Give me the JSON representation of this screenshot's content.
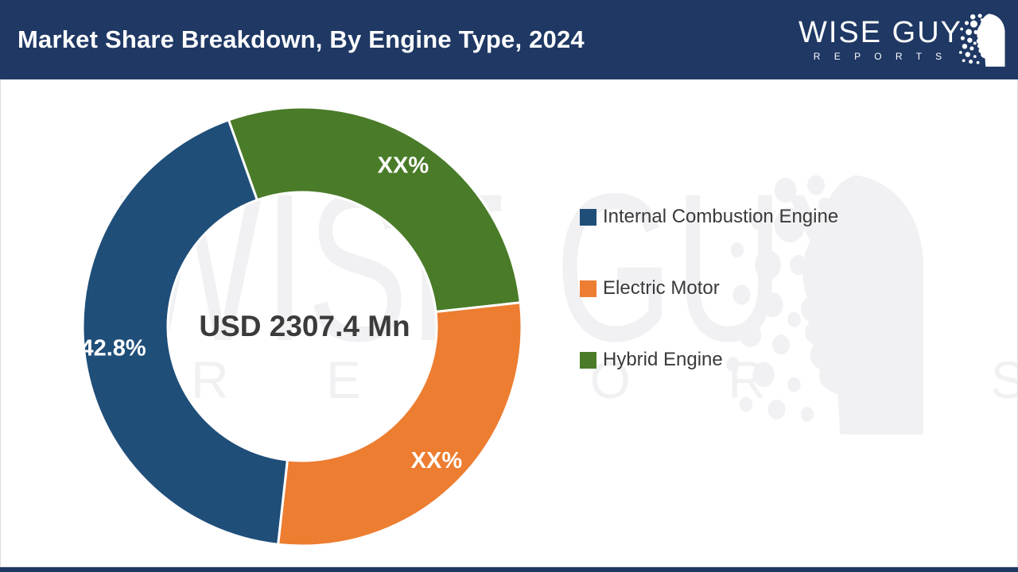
{
  "header": {
    "title": "Market Share Breakdown, By Engine Type, 2024",
    "logo": {
      "name": "WISE GUY",
      "subtitle": "R E P O R T S"
    }
  },
  "watermark": {
    "name": "WISE GUY",
    "subtitle": "R E P O R T S"
  },
  "chart_data": {
    "type": "donut",
    "title": "Market Share Breakdown, By Engine Type, 2024",
    "center_label": "USD 2307.4 Mn",
    "start_angle_deg_clockwise_from_top": -19.6,
    "legend_position": "right",
    "segments": [
      {
        "name": "Hybrid Engine",
        "label": "XX%",
        "value_pct": 28.7,
        "color": "#4a7b28"
      },
      {
        "name": "Electric Motor",
        "label": "XX%",
        "value_pct": 28.5,
        "color": "#ed7d31"
      },
      {
        "name": "Internal Combustion Engine",
        "label": "42.8%",
        "value_pct": 42.8,
        "color": "#1f4e79"
      }
    ]
  },
  "legend": {
    "items": [
      {
        "label": "Internal Combustion Engine",
        "color": "#1f4e79"
      },
      {
        "label": "Electric Motor",
        "color": "#ed7d31"
      },
      {
        "label": "Hybrid Engine",
        "color": "#4a7b28"
      }
    ]
  },
  "colors": {
    "header_bg": "#1f3864",
    "footer_bg": "#1f3864",
    "segment_blue": "#1f4e79",
    "segment_orange": "#ed7d31",
    "segment_green": "#4a7b28",
    "text_dark": "#3a3a3a",
    "watermark": "#f1f1f4",
    "border": "#dcdcdc"
  }
}
